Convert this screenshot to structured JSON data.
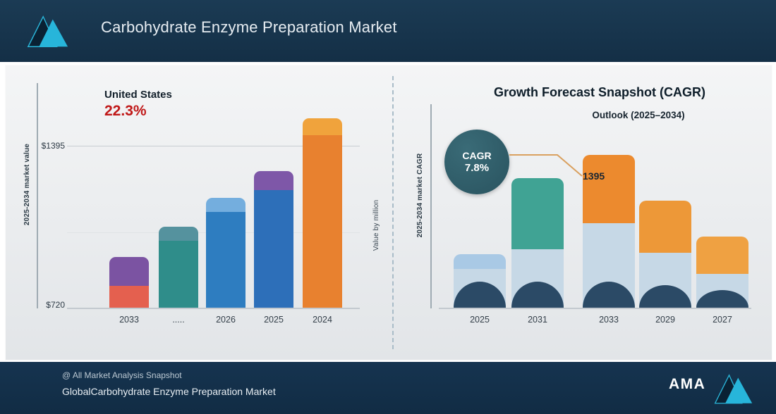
{
  "header": {
    "title": "Carbohydrate Enzyme Preparation Market",
    "logo": "ama-mountain-logo"
  },
  "left_panel": {
    "region_label": "United States",
    "growth_value": "22.3%",
    "y_axis_label": "2025-2034 market value",
    "right_axis_label": "Value by million",
    "tick_top": "$1395",
    "tick_bottom": "$720"
  },
  "right_panel": {
    "title": "Growth Forecast Snapshot (CAGR)",
    "subtitle": "Outlook (2025–2034)",
    "y_axis_label": "2025-2034 market CAGR",
    "badge_label": "CAGR",
    "badge_value": "7.8%",
    "annotation_value": "1395"
  },
  "footer": {
    "note": "@ All Market Analysis Snapshot",
    "title": "GlobalCarbohydrate Enzyme Preparation Market",
    "brand": "AMA"
  },
  "colors": {
    "header_bg": "#16344c",
    "accent_red": "#c01818",
    "accent_cyan": "#27b5da",
    "badge_teal": "#2d5a66",
    "orange": "#ec8a2e"
  },
  "chart_data": [
    {
      "type": "bar",
      "title": "United States",
      "highlight": "22.3%",
      "ylabel": "2025-2034 market value",
      "ylabel_right": "Value by million",
      "categories": [
        "2033",
        ".....",
        "2026",
        "2025",
        "2024"
      ],
      "ylim": [
        720,
        1650
      ],
      "yticks": [
        720,
        1395
      ],
      "ytick_labels": [
        "$720",
        "$1395"
      ],
      "grid": true,
      "legend": false,
      "series": [
        {
          "name": "base",
          "values": [
            810,
            1000,
            1120,
            1210,
            1440
          ]
        },
        {
          "name": "cap_top",
          "values": [
            930,
            1060,
            1180,
            1290,
            1510
          ]
        }
      ],
      "bar_colors": {
        "base": [
          "#e4604f",
          "#2f8d8a",
          "#2e7dc0",
          "#2d6fb9",
          "#e8812f"
        ],
        "cap": [
          "#7b53a2",
          "#55929e",
          "#74aede",
          "#7e57a8",
          "#f0a33c"
        ]
      }
    },
    {
      "type": "bar",
      "stacked": true,
      "title": "Growth Forecast Snapshot (CAGR)",
      "subtitle": "Outlook (2025–2034)",
      "ylabel": "2025-2034 market CAGR",
      "categories": [
        "2025",
        "2031",
        "2033",
        "2029",
        "2027"
      ],
      "units": "relative index (0-100)",
      "series": [
        {
          "name": "base",
          "values": [
            16,
            16,
            16,
            14,
            11
          ]
        },
        {
          "name": "mid",
          "values": [
            8,
            20,
            36,
            20,
            10
          ]
        },
        {
          "name": "top",
          "values": [
            9,
            44,
            42,
            32,
            23
          ]
        }
      ],
      "segment_colors": {
        "base": "#2b4a66",
        "mid": "#c6d8e6",
        "top": [
          "#a9c9e5",
          "#40a394",
          "#ec8a2e",
          "#ed9838",
          "#efa142"
        ]
      },
      "annotation": {
        "category": "2033",
        "text": "1395"
      },
      "badge": {
        "label": "CAGR",
        "value": "7.8%"
      },
      "legend": false
    }
  ]
}
